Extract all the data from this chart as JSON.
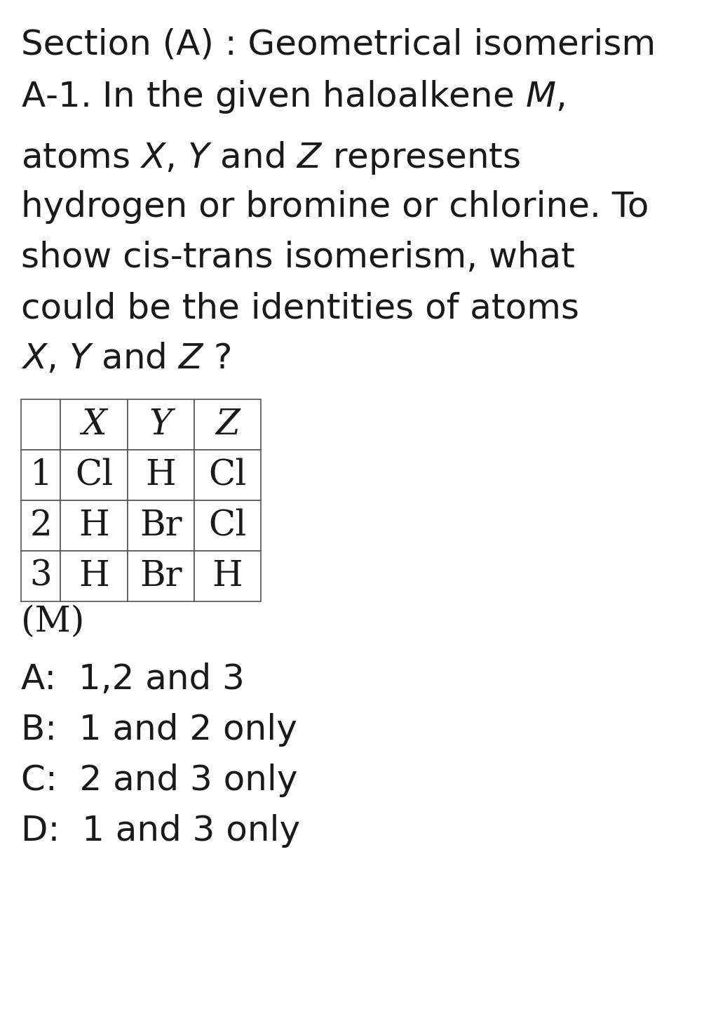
{
  "background_color": "#ffffff",
  "text_color": "#1a1a1a",
  "title_lines": [
    "Section (A) : Geometrical isomerism",
    "A-1. In the given haloalkene $\\mathit{M}$,"
  ],
  "body_lines": [
    "atoms $\\mathit{X}$, $\\mathit{Y}$ and $\\mathit{Z}$ represents",
    "hydrogen or bromine or chlorine. To",
    "show cis-trans isomerism, what",
    "could be the identities of atoms",
    "$\\mathit{X}$, $\\mathit{Y}$ and $\\mathit{Z}$ ?"
  ],
  "table_headers": [
    "",
    "X",
    "Y",
    "Z"
  ],
  "table_rows": [
    [
      "1",
      "Cl",
      "H",
      "Cl"
    ],
    [
      "2",
      "H",
      "Br",
      "Cl"
    ],
    [
      "3",
      "H",
      "Br",
      "H"
    ]
  ],
  "table_label": "(M)",
  "answer_lines": [
    "A:  1,2 and 3",
    "B:  1 and 2 only",
    "C:  2 and 3 only",
    "D:  1 and 3 only"
  ],
  "font_size_title": 36,
  "font_size_body": 36,
  "font_size_table": 36,
  "font_size_answers": 36
}
